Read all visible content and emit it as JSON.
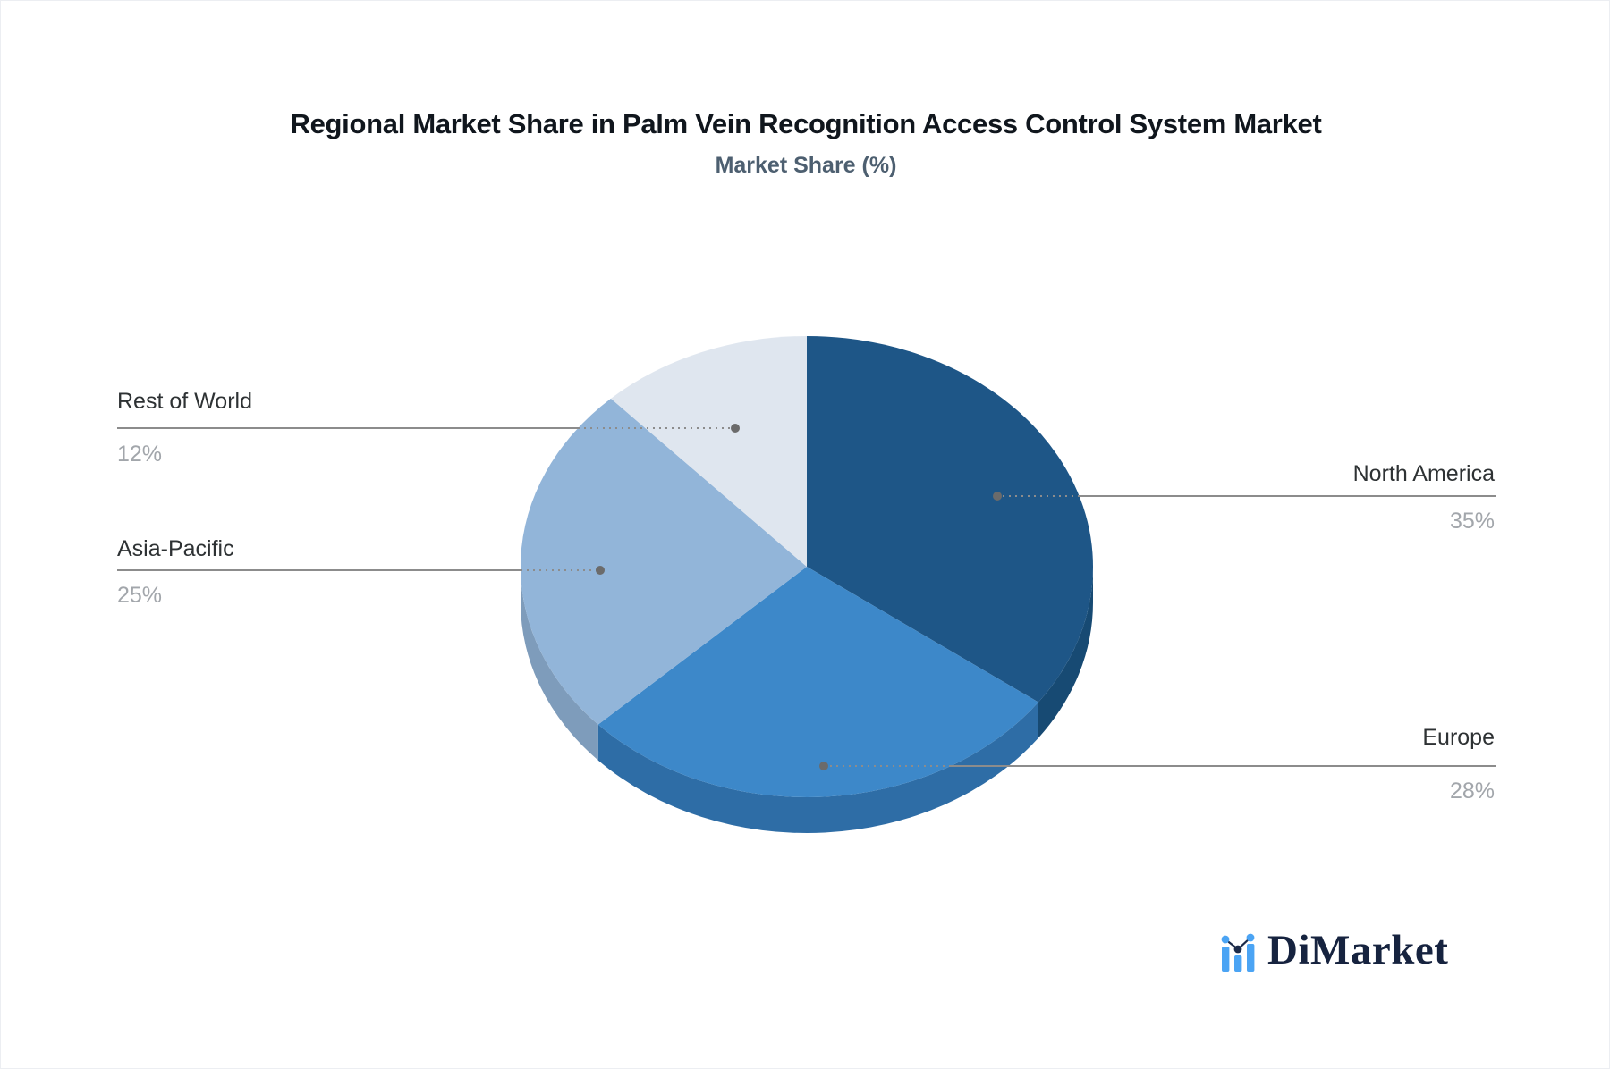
{
  "header": {
    "title": "Regional Market Share in Palm Vein Recognition Access Control System Market",
    "subtitle": "Market Share (%)"
  },
  "logo": {
    "text": "DiMarket",
    "icon": "bar-chart-logo-icon",
    "icon_blue": "#4BA4F4",
    "icon_navy": "#1C2B4A"
  },
  "palette": {
    "leader_line": "#8C8C8C",
    "anchor_dot": "#6B6B6B",
    "label_text": "#2E3234",
    "value_text": "#A2A6AB",
    "title_text": "#10161D",
    "subtitle_text": "#4D5F70",
    "background": "#FFFFFF"
  },
  "chart_data": {
    "type": "pie",
    "style": "3d",
    "title": "Regional Market Share in Palm Vein Recognition Access Control System Market",
    "subtitle": "Market Share (%)",
    "unit": "%",
    "start_angle": "12 o'clock",
    "direction": "clockwise",
    "legend_position": "callout-labels",
    "slices": [
      {
        "name": "North America",
        "value": 35,
        "display": "35%",
        "color": "#1E5687",
        "side_color": "#174A73"
      },
      {
        "name": "Europe",
        "value": 28,
        "display": "28%",
        "color": "#3D88C9",
        "side_color": "#2E6DA6"
      },
      {
        "name": "Asia-Pacific",
        "value": 25,
        "display": "25%",
        "color": "#92B5D9",
        "side_color": "#7E9CBB"
      },
      {
        "name": "Rest of World",
        "value": 12,
        "display": "12%",
        "color": "#DFE6EF",
        "side_color": "#C2CDDB"
      }
    ]
  }
}
